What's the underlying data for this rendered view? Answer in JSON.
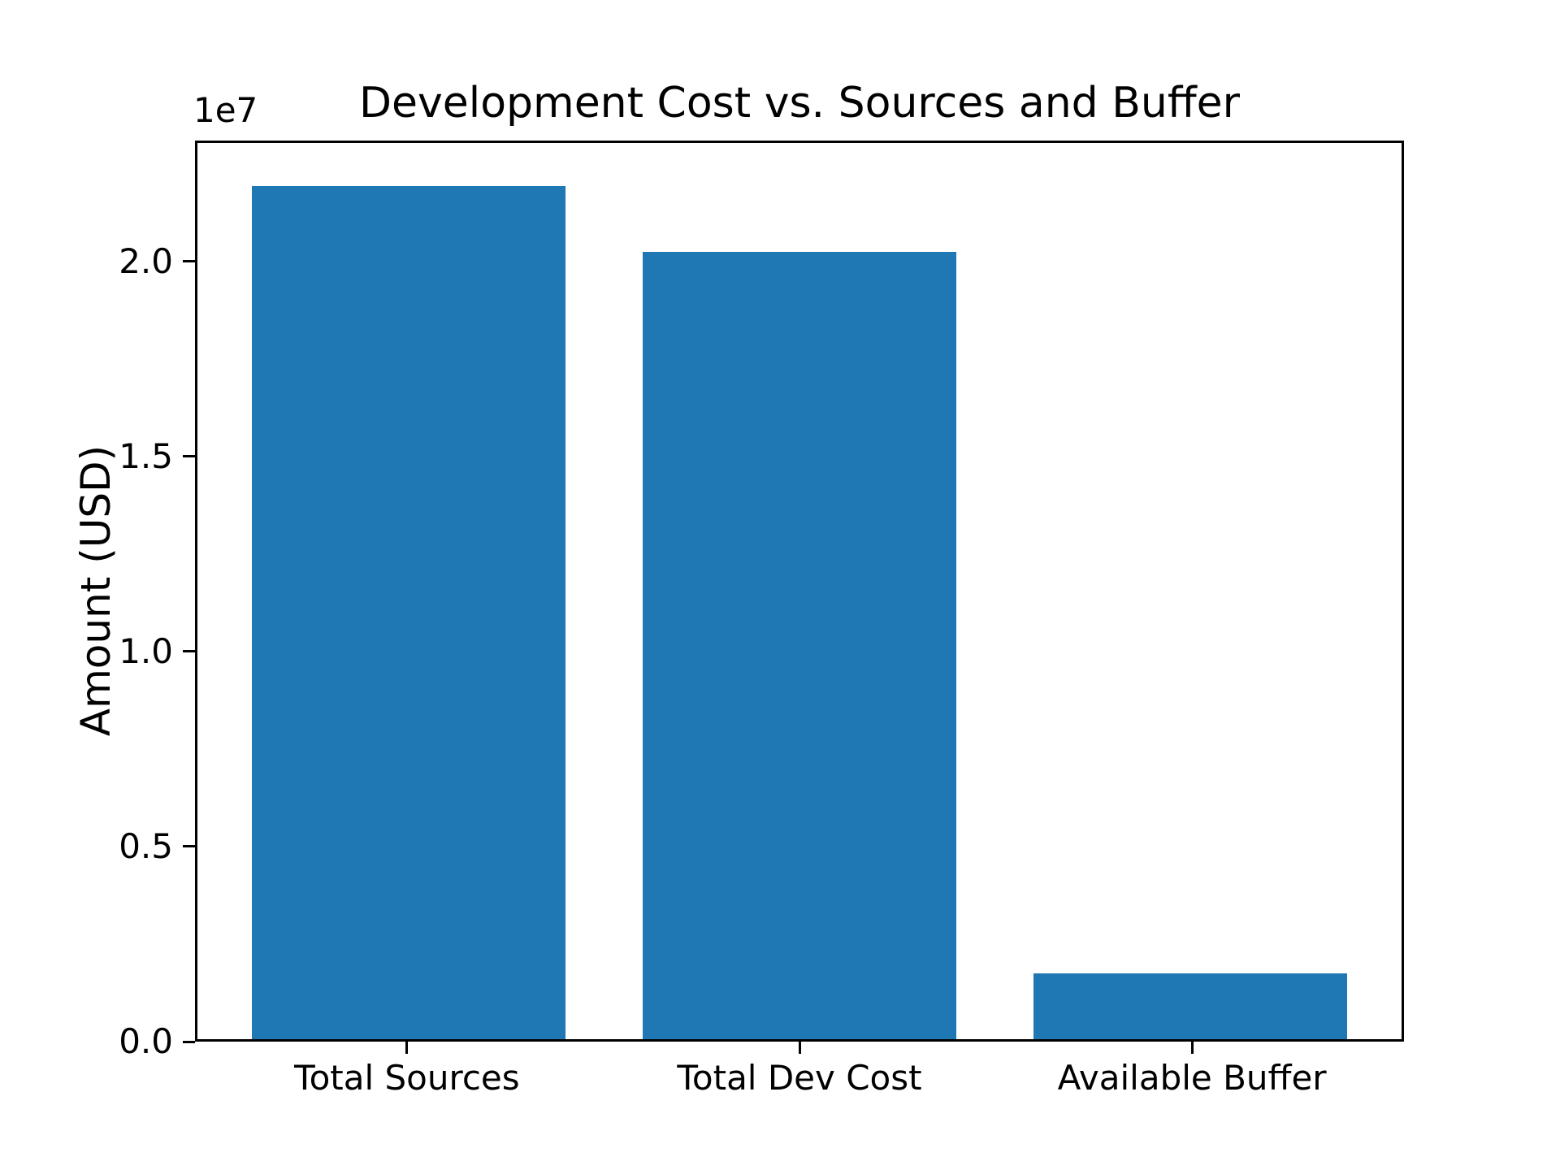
{
  "chart_data": {
    "type": "bar",
    "title": "Development Cost vs. Sources and Buffer",
    "ylabel": "Amount (USD)",
    "xlabel": "",
    "offset_text": "1e7",
    "categories": [
      "Total Sources",
      "Total Dev Cost",
      "Available Buffer"
    ],
    "values": [
      22000000,
      20300000,
      1700000
    ],
    "ylim": [
      0,
      23100000
    ],
    "yticks": [
      0,
      5000000,
      10000000,
      15000000,
      20000000
    ],
    "ytick_labels": [
      "0.0",
      "0.5",
      "1.0",
      "1.5",
      "2.0"
    ],
    "bar_color": "#1f77b4",
    "axis_color": "#000000",
    "grid": false,
    "legend_position": "none"
  }
}
